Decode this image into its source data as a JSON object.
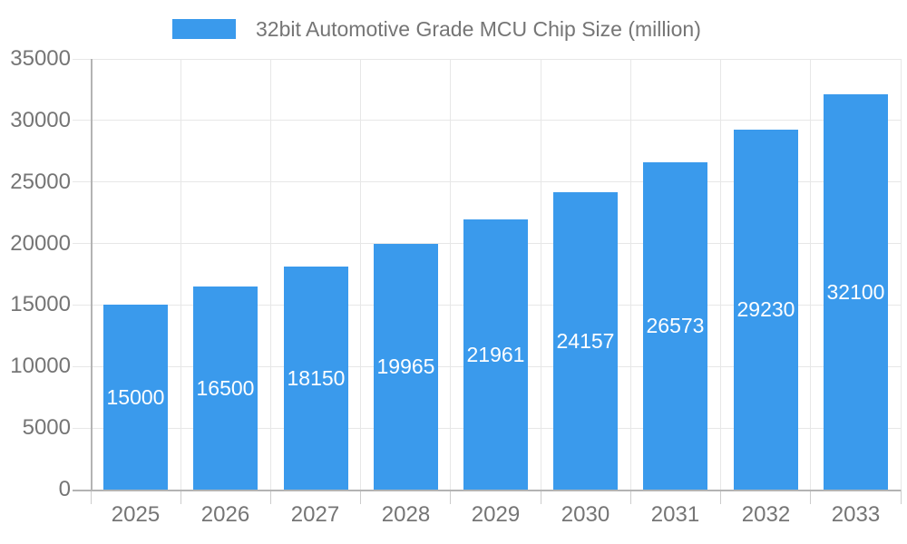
{
  "legend": {
    "label": "32bit Automotive Grade MCU Chip Size (million)"
  },
  "colors": {
    "bar": "#3A9AEC",
    "gridline": "#E7E7E7",
    "axis_line": "#B3B3B3",
    "tick_mark": "#CCCCCC",
    "axis_text": "#757575",
    "value_label_text": "#FFFFFF",
    "background": "#FFFFFF"
  },
  "chart_data": {
    "type": "bar",
    "title": "32bit Automotive Grade MCU Chip Size (million)",
    "legend_entries": [
      "32bit Automotive Grade MCU Chip Size (million)"
    ],
    "legend_position": "top-center",
    "categories": [
      "2025",
      "2026",
      "2027",
      "2028",
      "2029",
      "2030",
      "2031",
      "2032",
      "2033"
    ],
    "values": [
      15000,
      16500,
      18150,
      19965,
      21961,
      24157,
      26573,
      29230,
      32100
    ],
    "value_labels_shown": true,
    "value_label_position": "inside-center",
    "xlabel": "",
    "ylabel": "",
    "ylim": [
      0,
      35000
    ],
    "ytick_step": 5000,
    "yticks": [
      0,
      5000,
      10000,
      15000,
      20000,
      25000,
      30000,
      35000
    ],
    "grid": true
  }
}
